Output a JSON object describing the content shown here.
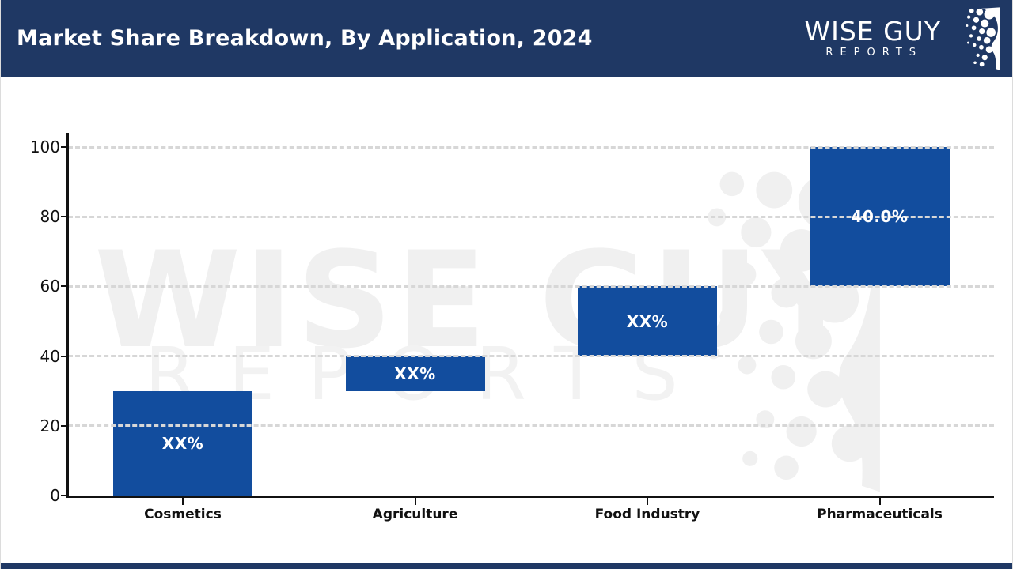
{
  "header": {
    "title": "Market Share Breakdown, By Application, 2024",
    "logo": {
      "line1": "WISE GUY",
      "line2": "REPORTS"
    }
  },
  "watermark": {
    "line1": "WISE GUY",
    "line2": "REPORTS"
  },
  "colors": {
    "header_bg": "#1f3864",
    "footer_bg": "#1f3864",
    "bar": "#124d9e",
    "grid": "#d7d7d7",
    "axis": "#111111",
    "bar_label": "#ffffff",
    "watermark": "#f0f0f0"
  },
  "chart_data": {
    "type": "bar",
    "subtype": "waterfall",
    "title": "Market Share Breakdown, By Application, 2024",
    "categories": [
      "Cosmetics",
      "Agriculture",
      "Food Industry",
      "Pharmaceuticals"
    ],
    "segments": [
      [
        0,
        30
      ],
      [
        30,
        40
      ],
      [
        40,
        60
      ],
      [
        60,
        100
      ]
    ],
    "values": [
      30,
      10,
      20,
      40
    ],
    "bar_labels": [
      "XX%",
      "XX%",
      "XX%",
      "40.0%"
    ],
    "yticks": [
      0,
      20,
      40,
      60,
      80,
      100
    ],
    "ylim": [
      0,
      104
    ],
    "xlabel": "",
    "ylabel": "",
    "grid": "horizontal-dashed, drawn over bars",
    "legend": "none",
    "bar_color": "#124d9e"
  }
}
